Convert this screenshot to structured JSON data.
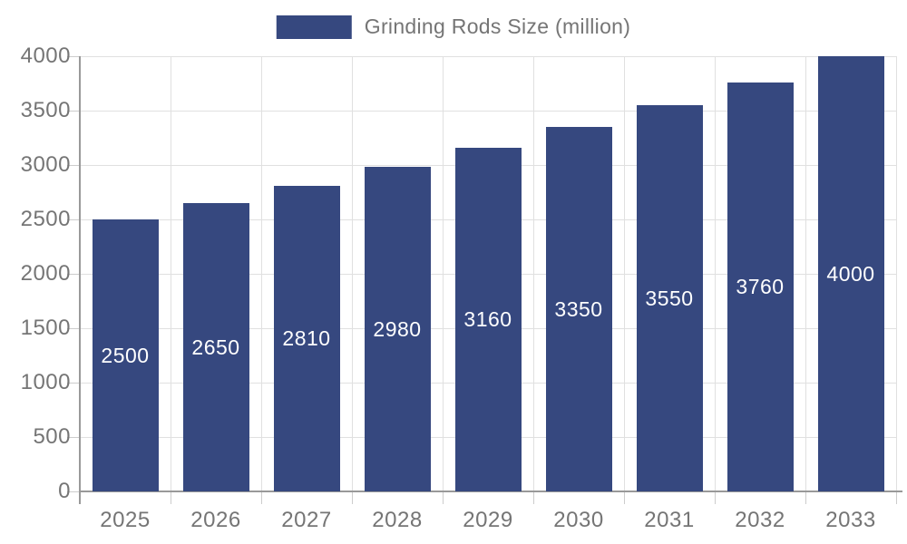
{
  "legend": {
    "label": "Grinding Rods Size (million)"
  },
  "chart_data": {
    "type": "bar",
    "title": "",
    "xlabel": "",
    "ylabel": "",
    "series_name": "Grinding Rods Size (million)",
    "categories": [
      "2025",
      "2026",
      "2027",
      "2028",
      "2029",
      "2030",
      "2031",
      "2032",
      "2033"
    ],
    "values": [
      2500,
      2650,
      2810,
      2980,
      3160,
      3350,
      3550,
      3760,
      4000
    ],
    "bar_value_labels": [
      "2500",
      "2650",
      "2810",
      "2980",
      "3160",
      "3350",
      "3550",
      "3760",
      "4000"
    ],
    "ylim": [
      0,
      4000
    ],
    "ytick_step": 500,
    "ytick_labels": [
      "0",
      "500",
      "1000",
      "1500",
      "2000",
      "2500",
      "3000",
      "3500",
      "4000"
    ],
    "grid": true,
    "legend_position": "top",
    "colors": {
      "bar": "#36487F",
      "bar_label": "#FFFFFF",
      "axis_text": "#757575",
      "grid_line": "#E0E0E0",
      "tick_line": "#CCCCCC",
      "axis_line": "#999999",
      "background": "#FFFFFF"
    }
  }
}
